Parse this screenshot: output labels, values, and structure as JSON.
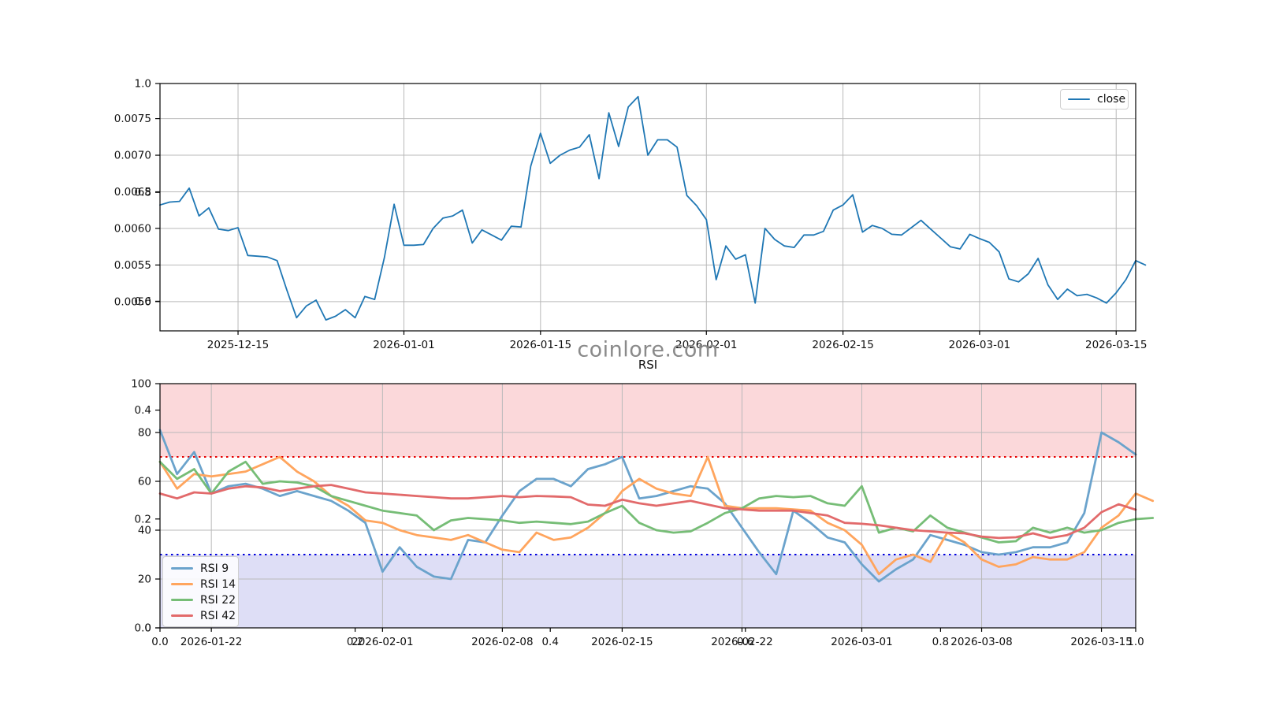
{
  "watermark": {
    "text": "coinlore.com",
    "color": "#8a8a8a"
  },
  "overlay_axis": {
    "x_labels": [
      "0.0",
      "0.2",
      "0.4",
      "0.6",
      "0.8",
      "1.0"
    ],
    "y_labels": [
      "0.0",
      "0.2",
      "0.4",
      "0.6",
      "0.8",
      "1.0"
    ],
    "color": "#000000"
  },
  "chart_data": [
    {
      "type": "line",
      "title": "",
      "panel": "price",
      "grid": true,
      "legend": {
        "position": "upper-right",
        "entries": [
          "close"
        ]
      },
      "xlim_days": [
        0,
        100
      ],
      "ylim": [
        0.0046,
        0.00798
      ],
      "x_ticks": [
        {
          "day": 8,
          "label": "2025-12-15"
        },
        {
          "day": 25,
          "label": "2026-01-01"
        },
        {
          "day": 39,
          "label": "2026-01-15"
        },
        {
          "day": 56,
          "label": "2026-02-01"
        },
        {
          "day": 70,
          "label": "2026-02-15"
        },
        {
          "day": 84,
          "label": "2026-03-01"
        },
        {
          "day": 98,
          "label": "2026-03-15"
        }
      ],
      "y_ticks": [
        {
          "value": 0.0075,
          "label": "0.0075"
        },
        {
          "value": 0.007,
          "label": "0.0070"
        },
        {
          "value": 0.0065,
          "label": "0.0065"
        },
        {
          "value": 0.006,
          "label": "0.0060"
        },
        {
          "value": 0.0055,
          "label": "0.0055"
        },
        {
          "value": 0.005,
          "label": "0.0050"
        }
      ],
      "series": [
        {
          "name": "close",
          "color": "#1f77b4",
          "width": 1.8,
          "start_day": 0,
          "start_date": "2025-12-07",
          "values": [
            0.00632,
            0.00636,
            0.00637,
            0.00655,
            0.00617,
            0.00628,
            0.00599,
            0.00597,
            0.00601,
            0.00563,
            0.00562,
            0.00561,
            0.00556,
            0.00516,
            0.00478,
            0.00494,
            0.00502,
            0.00475,
            0.0048,
            0.00489,
            0.00478,
            0.00507,
            0.00503,
            0.0056,
            0.00633,
            0.00577,
            0.00577,
            0.00578,
            0.006,
            0.00614,
            0.00617,
            0.00625,
            0.0058,
            0.00598,
            0.00591,
            0.00584,
            0.00603,
            0.00602,
            0.00685,
            0.0073,
            0.00689,
            0.007,
            0.00707,
            0.00711,
            0.00728,
            0.00668,
            0.00758,
            0.00712,
            0.00766,
            0.0078,
            0.007,
            0.00721,
            0.00721,
            0.00711,
            0.00645,
            0.00631,
            0.00612,
            0.0053,
            0.00576,
            0.00558,
            0.00564,
            0.00498,
            0.006,
            0.00585,
            0.00576,
            0.00574,
            0.00591,
            0.00591,
            0.00596,
            0.00625,
            0.00632,
            0.00646,
            0.00595,
            0.00604,
            0.006,
            0.00592,
            0.00591,
            0.00601,
            0.00611,
            0.00599,
            0.00587,
            0.00575,
            0.00572,
            0.00592,
            0.00586,
            0.00581,
            0.00568,
            0.00531,
            0.00527,
            0.00538,
            0.00559,
            0.00523,
            0.00503,
            0.00517,
            0.00508,
            0.0051,
            0.00505,
            0.00498,
            0.00512,
            0.0053,
            0.00556,
            0.0055
          ]
        }
      ]
    },
    {
      "type": "line",
      "title": "RSI",
      "panel": "rsi",
      "grid": true,
      "legend": {
        "position": "lower-left",
        "entries": [
          "RSI 9",
          "RSI 14",
          "RSI 22",
          "RSI 42"
        ]
      },
      "xlim_days": [
        43,
        100
      ],
      "ylim": [
        0,
        100
      ],
      "bands": [
        {
          "from": 70,
          "to": 100,
          "color": "#fbd8da",
          "name": "overbought"
        },
        {
          "from": 0,
          "to": 30,
          "color": "#dedef6",
          "name": "oversold"
        }
      ],
      "hlines": [
        {
          "value": 70,
          "color": "#e60000",
          "style": "dotted"
        },
        {
          "value": 30,
          "color": "#0000dd",
          "style": "dotted"
        }
      ],
      "x_ticks": [
        {
          "day": 46,
          "label": "2026-01-22"
        },
        {
          "day": 56,
          "label": "2026-02-01"
        },
        {
          "day": 63,
          "label": "2026-02-08"
        },
        {
          "day": 70,
          "label": "2026-02-15"
        },
        {
          "day": 77,
          "label": "2026-02-22"
        },
        {
          "day": 84,
          "label": "2026-03-01"
        },
        {
          "day": 91,
          "label": "2026-03-08"
        },
        {
          "day": 98,
          "label": "2026-03-15"
        }
      ],
      "y_ticks": [
        {
          "value": 100,
          "label": "100"
        },
        {
          "value": 80,
          "label": "80"
        },
        {
          "value": 60,
          "label": "60"
        },
        {
          "value": 40,
          "label": "40"
        },
        {
          "value": 20,
          "label": "20"
        },
        {
          "value": 0,
          "label": "0"
        }
      ],
      "series": [
        {
          "name": "RSI 9",
          "color": "#6ba3cc",
          "width": 2.8,
          "start_day": 43,
          "start_date": "2026-01-19",
          "values": [
            81,
            63,
            72,
            55,
            58,
            59,
            57,
            54,
            56,
            54,
            52,
            48,
            43,
            23,
            33,
            25,
            21,
            20,
            36,
            35,
            46,
            56,
            61,
            61,
            58,
            65,
            67,
            70,
            53,
            54,
            56,
            58,
            57,
            51,
            41,
            31,
            22,
            48,
            43,
            37,
            35,
            26,
            19,
            24,
            28,
            38,
            36,
            34,
            31,
            30,
            31,
            33,
            33,
            35,
            47,
            80,
            76,
            71
          ]
        },
        {
          "name": "RSI 14",
          "color": "#ffa55e",
          "width": 2.8,
          "start_day": 43,
          "start_date": "2026-01-19",
          "values": [
            68,
            57,
            63,
            62,
            63,
            64,
            67,
            70,
            64,
            60,
            54,
            50,
            44,
            43,
            40,
            38,
            37,
            36,
            38,
            35,
            32,
            31,
            39,
            36,
            37,
            41,
            47,
            56,
            61,
            57,
            55,
            54,
            70,
            50,
            49,
            49,
            49,
            48.5,
            48,
            43,
            40,
            34,
            22,
            28,
            30,
            27,
            39,
            35,
            28,
            25,
            26,
            29,
            28,
            28,
            31,
            41,
            46,
            55,
            52
          ]
        },
        {
          "name": "RSI 22",
          "color": "#76bd76",
          "width": 2.8,
          "start_day": 43,
          "start_date": "2026-01-19",
          "values": [
            68,
            61,
            65,
            55,
            64,
            68,
            59,
            60,
            59.5,
            58,
            54,
            52,
            50,
            48,
            47,
            46,
            40,
            44,
            45,
            44.5,
            44,
            43,
            43.5,
            43,
            42.5,
            43.5,
            47,
            50,
            43,
            40,
            39,
            39.5,
            43,
            47,
            49,
            53,
            54,
            53.5,
            54,
            51,
            50,
            58,
            39,
            41,
            39.5,
            46,
            41,
            39,
            37,
            35,
            35.5,
            41,
            39,
            41,
            39,
            40,
            43,
            44.5,
            45
          ]
        },
        {
          "name": "RSI 42",
          "color": "#e26a6b",
          "width": 2.8,
          "start_day": 43,
          "start_date": "2026-01-19",
          "values": [
            55,
            53,
            55.5,
            55,
            57,
            58,
            57.5,
            56,
            57,
            58,
            58.5,
            57,
            55.5,
            55,
            54.5,
            54,
            53.5,
            53,
            53,
            53.5,
            54,
            53.5,
            54,
            53.8,
            53.5,
            50.5,
            50,
            52.5,
            51,
            50,
            51,
            52,
            50.5,
            49,
            48.5,
            48,
            48,
            48,
            47,
            46,
            43,
            42.6,
            42,
            41,
            40,
            39.5,
            39,
            38.7,
            37.4,
            36.8,
            37.1,
            38.7,
            36.8,
            38,
            41,
            47.4,
            50.6,
            48.4
          ]
        }
      ]
    }
  ]
}
